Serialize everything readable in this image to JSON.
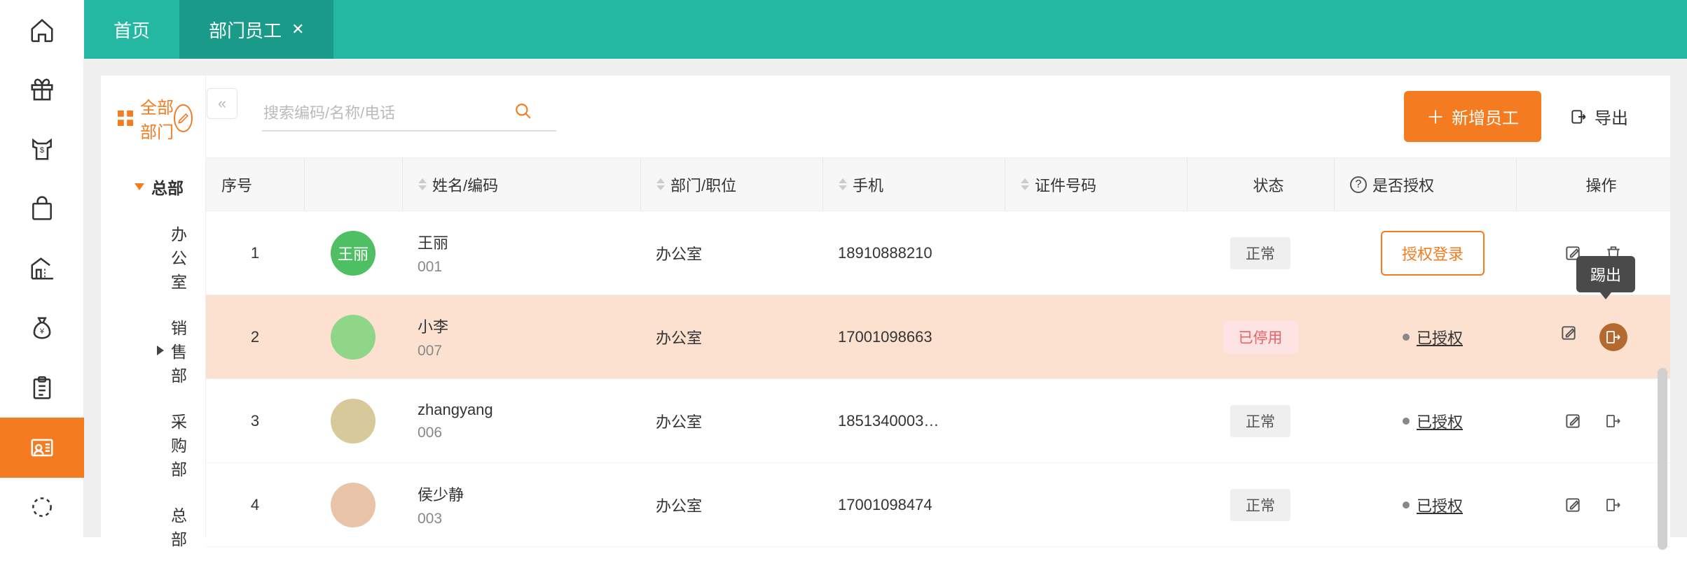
{
  "colors": {
    "primary_teal": "#24b8a3",
    "primary_teal_dark": "#1a9a89",
    "accent_orange": "#f47b20",
    "row_highlight": "#fce1d0",
    "chip_grey": "#efefef",
    "chip_red_bg": "#fde3e3",
    "chip_red_fg": "#e86060",
    "tooltip_bg": "#4a4a4a",
    "border_light": "#eeeeee"
  },
  "rail_icons": [
    "home",
    "gift",
    "shirt-money",
    "shopping-bag",
    "building",
    "money-bag",
    "clipboard",
    "id-card",
    "refresh"
  ],
  "rail_active_index": 7,
  "tabs": [
    {
      "label": "首页",
      "closable": false,
      "active": false
    },
    {
      "label": "部门员工",
      "closable": true,
      "active": true
    }
  ],
  "tree": {
    "header_label": "全部部门",
    "edit_tooltip": "编辑",
    "nodes": [
      {
        "label": "总部",
        "level": 1,
        "expanded": true
      },
      {
        "label": "办公室",
        "level": 2,
        "expanded": false,
        "has_children": false
      },
      {
        "label": "销售部",
        "level": 2,
        "expanded": false,
        "has_children": true
      },
      {
        "label": "采购部",
        "level": 2,
        "expanded": false,
        "has_children": false
      },
      {
        "label": "总 部",
        "level": 2,
        "expanded": false,
        "has_children": false
      }
    ]
  },
  "search": {
    "placeholder": "搜索编码/名称/电话"
  },
  "toolbar": {
    "add_label": "新增员工",
    "export_label": "导出"
  },
  "table": {
    "columns": {
      "index": "序号",
      "name": "姓名/编码",
      "dept": "部门/职位",
      "phone": "手机",
      "idnum": "证件号码",
      "status": "状态",
      "auth": "是否授权",
      "ops": "操作"
    },
    "auth_button_label": "授权登录",
    "auth_link_label": "已授权",
    "status_labels": {
      "normal": "正常",
      "stopped": "已停用"
    },
    "tooltip_kick": "踢出",
    "rows": [
      {
        "index": "1",
        "avatar": {
          "type": "text",
          "text": "王丽",
          "bg": "#4fbf64"
        },
        "name": "王丽",
        "code": "001",
        "dept": "办公室",
        "phone": "18910888210",
        "idnum": "",
        "status": "normal",
        "authorized": false,
        "highlight": false,
        "ops": [
          "edit",
          "delete"
        ]
      },
      {
        "index": "2",
        "avatar": {
          "type": "img",
          "bg": "#8fd689"
        },
        "name": "小李",
        "code": "007",
        "dept": "办公室",
        "phone": "17001098663",
        "idnum": "",
        "status": "stopped",
        "authorized": true,
        "highlight": true,
        "ops": [
          "edit",
          "kick"
        ],
        "show_tooltip": true
      },
      {
        "index": "3",
        "avatar": {
          "type": "img",
          "bg": "#d7c99a"
        },
        "name": "zhangyang",
        "code": "006",
        "dept": "办公室",
        "phone": "1851340003…",
        "idnum": "",
        "status": "normal",
        "authorized": true,
        "highlight": false,
        "ops": [
          "edit",
          "kick"
        ]
      },
      {
        "index": "4",
        "avatar": {
          "type": "img",
          "bg": "#e9c4a8"
        },
        "name": "侯少静",
        "code": "003",
        "dept": "办公室",
        "phone": "17001098474",
        "idnum": "",
        "status": "normal",
        "authorized": true,
        "highlight": false,
        "ops": [
          "edit",
          "kick"
        ]
      }
    ]
  }
}
